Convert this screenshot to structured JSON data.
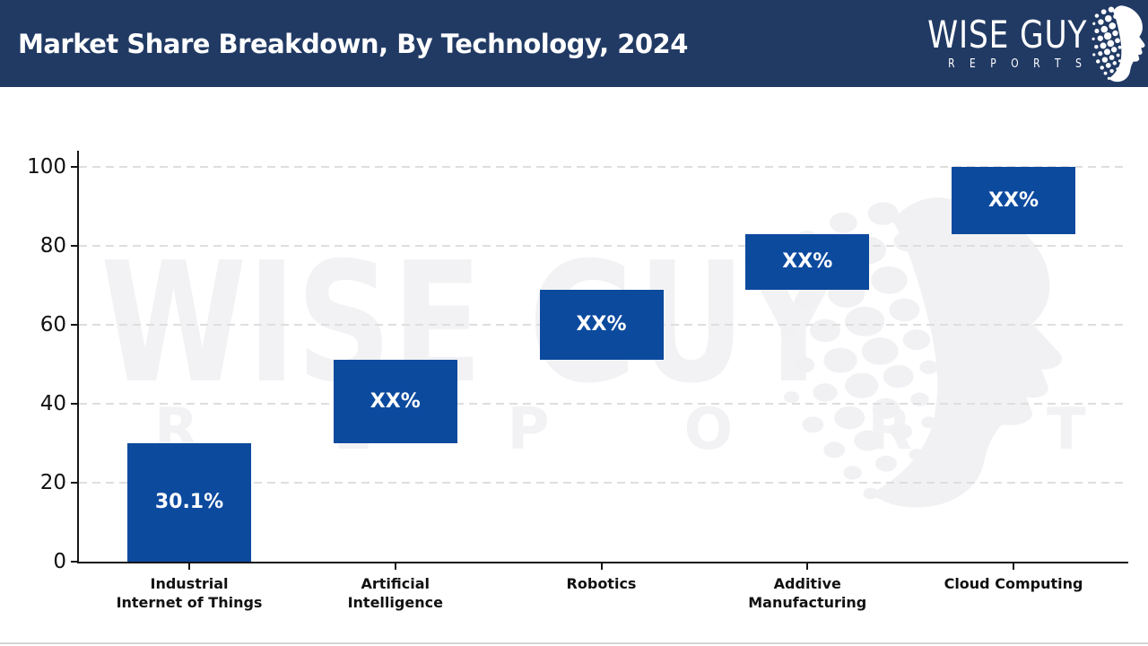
{
  "header": {
    "title": "Market Share Breakdown, By Technology, 2024",
    "logo": {
      "line1": "WISE GUY",
      "line2": "R E P O R T S"
    }
  },
  "watermark": {
    "line1": "WISE GUY",
    "line2": "R E P O R T S"
  },
  "colors": {
    "header_bg": "#213a64",
    "bar": "#0c4a9e",
    "bar_label_text": "#ffffff",
    "grid": "#dedede",
    "axis": "#151515",
    "watermark": "#f2f2f4"
  },
  "chart_data": {
    "type": "bar",
    "subtype": "waterfall",
    "title": "Market Share Breakdown, By Technology, 2024",
    "categories": [
      [
        "Industrial",
        "Internet of Things"
      ],
      [
        "Artificial",
        "Intelligence"
      ],
      [
        "Robotics"
      ],
      [
        "Additive",
        "Manufacturing"
      ],
      [
        "Cloud Computing"
      ]
    ],
    "segments": [
      {
        "category": "Industrial Internet of Things",
        "start": 0,
        "end": 30.1,
        "label": "30.1%"
      },
      {
        "category": "Artificial Intelligence",
        "start": 30.1,
        "end": 51.2,
        "label": "XX%"
      },
      {
        "category": "Robotics",
        "start": 51.2,
        "end": 68.9,
        "label": "XX%"
      },
      {
        "category": "Additive Manufacturing",
        "start": 68.9,
        "end": 83.0,
        "label": "XX%"
      },
      {
        "category": "Cloud Computing",
        "start": 83.0,
        "end": 100.0,
        "label": "XX%"
      }
    ],
    "xlabel": "",
    "ylabel": "",
    "yticks": [
      0,
      20,
      40,
      60,
      80,
      100
    ],
    "ylim": [
      0,
      104
    ],
    "grid": "horizontal-dashed",
    "legend": "none",
    "bar_color": "#0c4a9e"
  }
}
